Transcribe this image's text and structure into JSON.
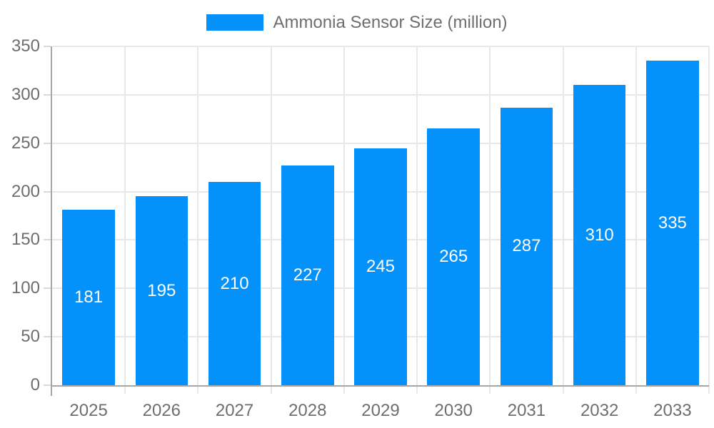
{
  "chart_data": {
    "type": "bar",
    "title": "Ammonia Sensor Size (million)",
    "categories": [
      "2025",
      "2026",
      "2027",
      "2028",
      "2029",
      "2030",
      "2031",
      "2032",
      "2033"
    ],
    "values": [
      181,
      195,
      210,
      227,
      245,
      265,
      287,
      310,
      335
    ],
    "xlabel": "",
    "ylabel": "",
    "ylim": [
      0,
      350
    ],
    "yticks": [
      0,
      50,
      100,
      150,
      200,
      250,
      300,
      350
    ],
    "grid": true,
    "legend_position": "top-center",
    "value_label_position": "inside-center",
    "colors": {
      "bar": "#0591fa",
      "value_label": "#ffffff",
      "axis_text": "#6e6e6e",
      "grid_line": "#e7e7e7",
      "axis_line": "#a6a6a6",
      "tick_line": "#d9d9d9"
    }
  }
}
